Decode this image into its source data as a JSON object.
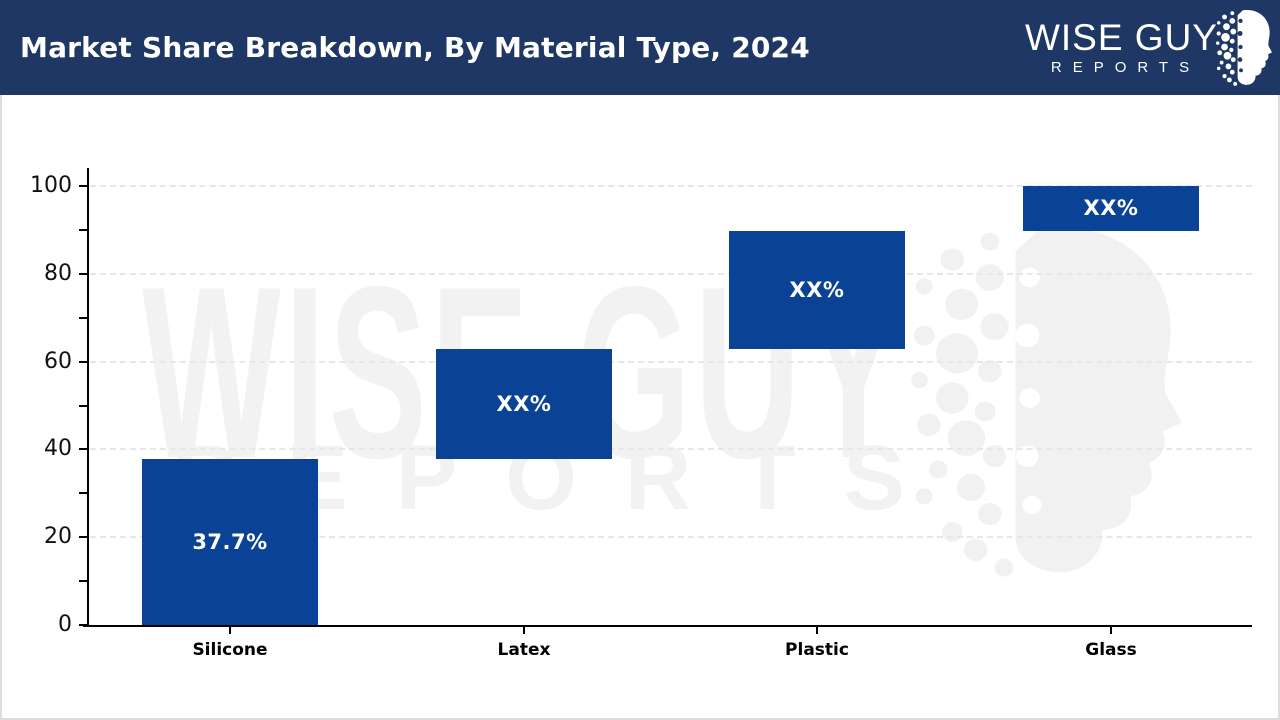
{
  "header": {
    "title": "Market Share Breakdown, By Material Type, 2024",
    "bg_color": "#1e3764"
  },
  "logo": {
    "name": "WISE GUY",
    "subtext": "REPORTS"
  },
  "watermark": {
    "line1": "WISE GUY",
    "line2": "REPORTS"
  },
  "chart_data": {
    "type": "bar",
    "subtype": "floating-waterfall",
    "title": "Market Share Breakdown, By Material Type, 2024",
    "categories": [
      "Silicone",
      "Latex",
      "Plastic",
      "Glass"
    ],
    "segments": [
      {
        "category": "Silicone",
        "start": 0,
        "end": 37.7,
        "label": "37.7%"
      },
      {
        "category": "Latex",
        "start": 37.7,
        "end": 62.8,
        "label": "XX%"
      },
      {
        "category": "Plastic",
        "start": 62.8,
        "end": 89.8,
        "label": "XX%"
      },
      {
        "category": "Glass",
        "start": 89.8,
        "end": 100,
        "label": "XX%"
      }
    ],
    "ylim": [
      0,
      100
    ],
    "yticks": [
      0,
      20,
      40,
      60,
      80,
      100
    ],
    "minor_tick_step": 10,
    "grid": "horizontal-dashed",
    "legend": "none",
    "bar_color": "#0a4296",
    "bar_label_color": "#ffffff",
    "axis_color": "#000000",
    "gridline_color": "#e7e7e7"
  }
}
